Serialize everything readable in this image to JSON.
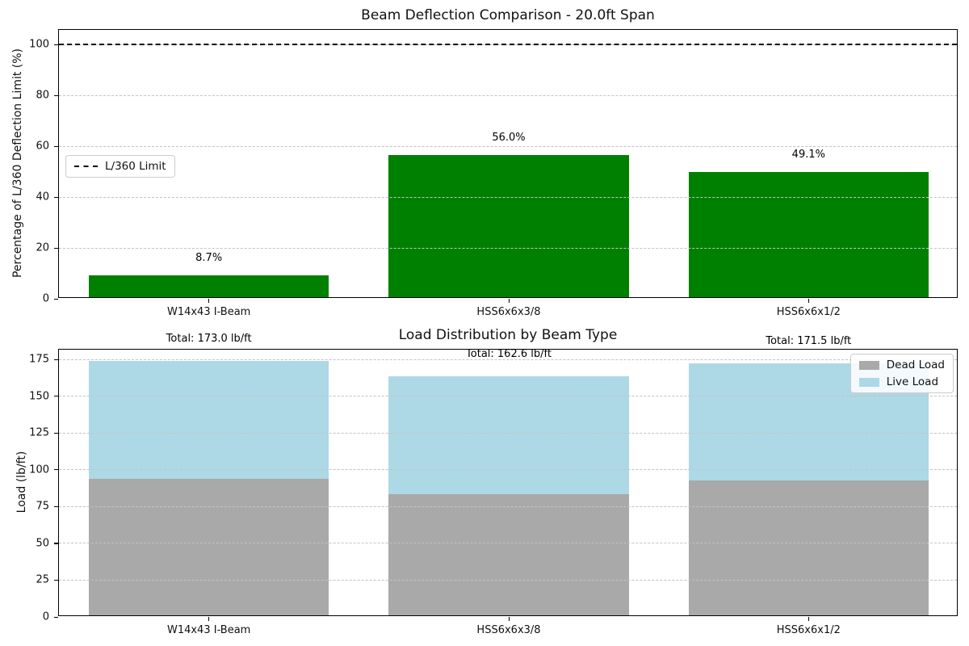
{
  "figure": {
    "background": "#ffffff"
  },
  "chart_data": [
    {
      "type": "bar",
      "title": "Beam Deflection Comparison - 20.0ft Span",
      "ylabel": "Percentage of L/360 Deflection Limit (%)",
      "xlabel": "",
      "categories": [
        "W14x43 I-Beam",
        "HSS6x6x3/8",
        "HSS6x6x1/2"
      ],
      "values": [
        8.7,
        56.0,
        49.1
      ],
      "value_labels": [
        "8.7%",
        "56.0%",
        "49.1%"
      ],
      "bar_color": "#008000",
      "yticks": [
        0,
        20,
        40,
        60,
        80,
        100
      ],
      "ylim": [
        0,
        105.8
      ],
      "grid": true,
      "grid_style": "dashed",
      "reference_line": {
        "value": 100,
        "label": "L/360 Limit",
        "color": "#000000",
        "style": "dashed"
      },
      "legend": {
        "position": "center-left",
        "entries": [
          {
            "label": "L/360 Limit",
            "swatch": "dashed-line",
            "color": "#000000"
          }
        ]
      }
    },
    {
      "type": "bar-stacked",
      "title": "Load Distribution by Beam Type",
      "ylabel": "Load (lb/ft)",
      "xlabel": "",
      "categories": [
        "W14x43 I-Beam",
        "HSS6x6x3/8",
        "HSS6x6x1/2"
      ],
      "series": [
        {
          "name": "Dead Load",
          "color": "#a9a9a9",
          "values": [
            93.0,
            82.6,
            91.5
          ]
        },
        {
          "name": "Live Load",
          "color": "#add8e6",
          "values": [
            80.0,
            80.0,
            80.0
          ]
        }
      ],
      "totals": [
        173.0,
        162.6,
        171.5
      ],
      "total_labels": [
        "Total: 173.0 lb/ft",
        "Total: 162.6 lb/ft",
        "Total: 171.5 lb/ft"
      ],
      "yticks": [
        0,
        25,
        50,
        75,
        100,
        125,
        150,
        175
      ],
      "ylim": [
        0,
        181.65
      ],
      "grid": true,
      "grid_style": "dashed",
      "legend": {
        "position": "upper-right",
        "entries": [
          {
            "label": "Dead Load",
            "swatch": "patch",
            "color": "#a9a9a9"
          },
          {
            "label": "Live Load",
            "swatch": "patch",
            "color": "#add8e6"
          }
        ]
      }
    }
  ]
}
